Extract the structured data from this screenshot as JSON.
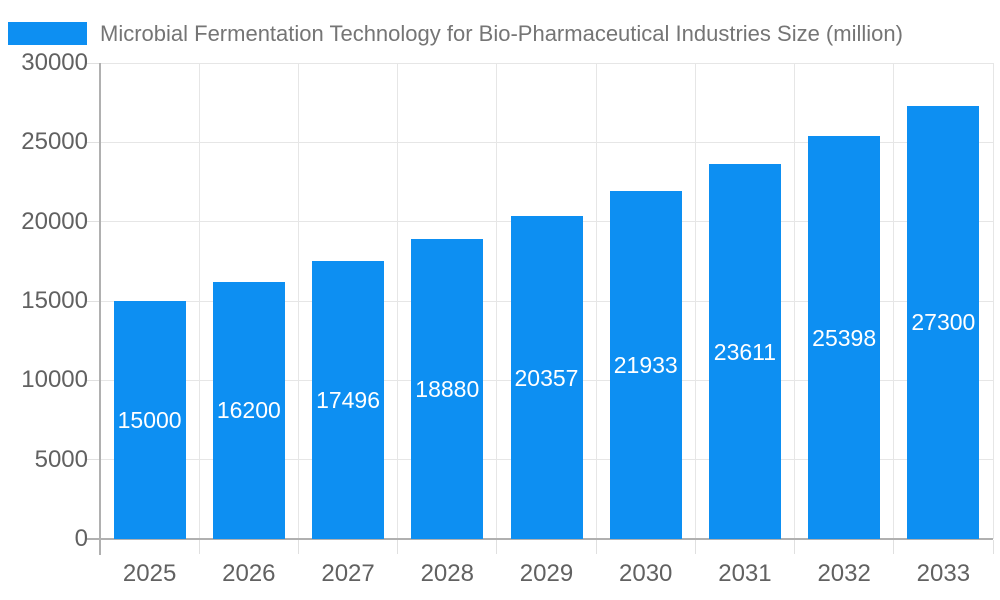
{
  "chart_data": {
    "type": "bar",
    "title": "Microbial Fermentation Technology for Bio-Pharmaceutical Industries Size (million)",
    "legend_entries": [
      "Microbial Fermentation Technology for Bio-Pharmaceutical Industries Size (million)"
    ],
    "legend_position": "top-left",
    "categories": [
      "2025",
      "2026",
      "2027",
      "2028",
      "2029",
      "2030",
      "2031",
      "2032",
      "2033"
    ],
    "values": [
      15000,
      16200,
      17496,
      18880,
      20357,
      21933,
      23611,
      25398,
      27300
    ],
    "xlabel": "",
    "ylabel": "",
    "ylim": [
      0,
      30000
    ],
    "yticks": [
      0,
      5000,
      10000,
      15000,
      20000,
      25000,
      30000
    ],
    "grid": true,
    "value_labels": "inside-bar, vertically centered, white"
  },
  "style": {
    "bar_color": "#0d8ff2",
    "title_color": "#757575",
    "axis_label_color": "#616161",
    "value_label_color": "#ffffff",
    "grid_color": "#e6e6e6",
    "tick_color": "#e0e0e0",
    "axis_line_color": "#b0b0b0",
    "background": "#ffffff"
  }
}
